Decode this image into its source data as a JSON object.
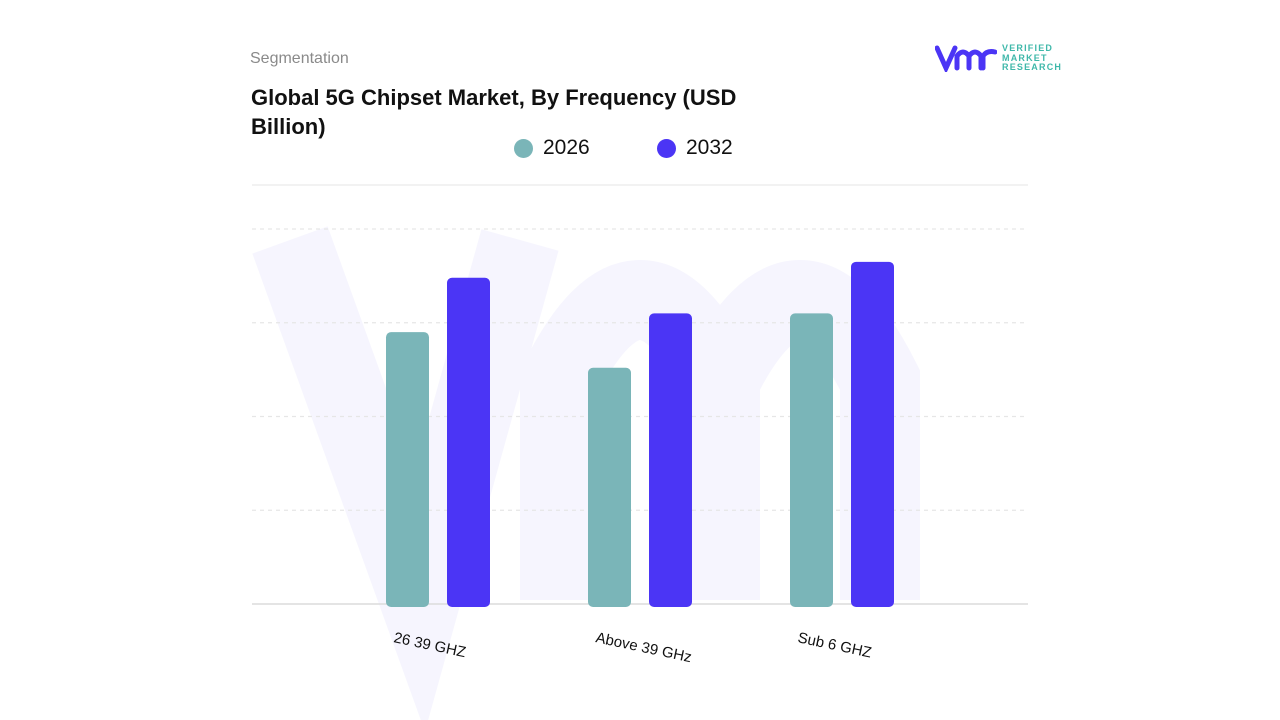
{
  "header": {
    "segment_label": "Segmentation",
    "title": "Global 5G Chipset Market, By Frequency (USD Billion)"
  },
  "logo": {
    "line1": "VERIFIED",
    "line2": "MARKET",
    "line3": "RESEARCH",
    "mark": "vmr"
  },
  "chart_data": {
    "type": "bar",
    "title": "Global 5G Chipset Market, By Frequency (USD Billion)",
    "categories": [
      "26 39 GHZ",
      "Above 39 GHz",
      "Sub 6 GHZ"
    ],
    "series": [
      {
        "name": "2026",
        "color": "#7ab5b8",
        "values": [
          2.9,
          2.52,
          3.1
        ]
      },
      {
        "name": "2032",
        "color": "#4b35f5",
        "values": [
          3.48,
          3.1,
          3.65
        ]
      }
    ],
    "ylim": [
      0,
      4
    ],
    "grid": true,
    "legend": "top-center",
    "xlabel": "",
    "ylabel": ""
  }
}
